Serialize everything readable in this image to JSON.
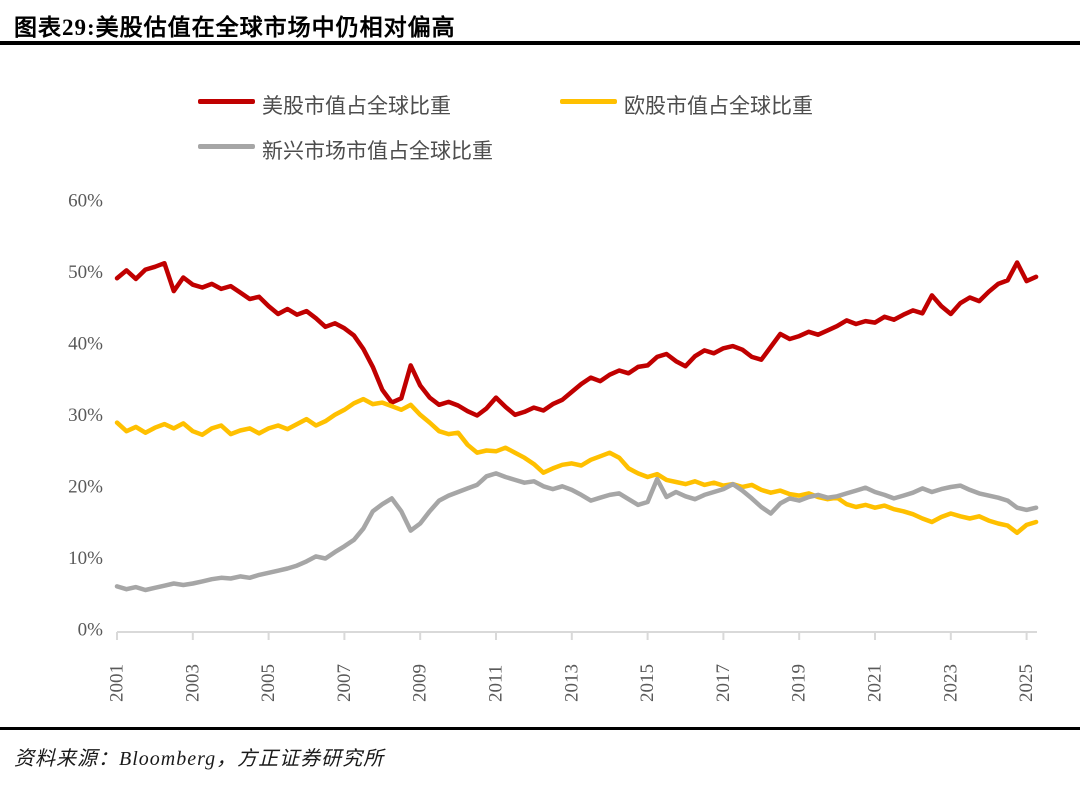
{
  "figure": {
    "title": "图表29:美股估值在全球市场中仍相对偏高",
    "source": "资料来源：Bloomberg，方正证券研究所"
  },
  "colors": {
    "us_line": "#C00000",
    "eu_line": "#FFC000",
    "em_line": "#A6A6A6",
    "axis_line": "#D9D9D9",
    "axis_label": "#595959",
    "rule": "#000000"
  },
  "chart_data": {
    "type": "line",
    "title": "",
    "xlabel": "",
    "ylabel": "",
    "grid": false,
    "legend_position": "top",
    "x_axis": {
      "tick_values": [
        2001,
        2003,
        2005,
        2007,
        2009,
        2011,
        2013,
        2015,
        2017,
        2019,
        2021,
        2023,
        2025
      ],
      "tick_labels": [
        "2001",
        "2003",
        "2005",
        "2007",
        "2009",
        "2011",
        "2013",
        "2015",
        "2017",
        "2019",
        "2021",
        "2023",
        "2025"
      ],
      "range": [
        2001,
        2025.3
      ],
      "label_rotation_deg": -90
    },
    "y_axis": {
      "tick_values": [
        0,
        10,
        20,
        30,
        40,
        50,
        60
      ],
      "tick_labels": [
        "0%",
        "10%",
        "20%",
        "30%",
        "40%",
        "50%",
        "60%"
      ],
      "range": [
        0,
        60
      ],
      "unit": "%"
    },
    "x": [
      2001.0,
      2001.25,
      2001.5,
      2001.75,
      2002.0,
      2002.25,
      2002.5,
      2002.75,
      2003.0,
      2003.25,
      2003.5,
      2003.75,
      2004.0,
      2004.25,
      2004.5,
      2004.75,
      2005.0,
      2005.25,
      2005.5,
      2005.75,
      2006.0,
      2006.25,
      2006.5,
      2006.75,
      2007.0,
      2007.25,
      2007.5,
      2007.75,
      2008.0,
      2008.25,
      2008.5,
      2008.75,
      2009.0,
      2009.25,
      2009.5,
      2009.75,
      2010.0,
      2010.25,
      2010.5,
      2010.75,
      2011.0,
      2011.25,
      2011.5,
      2011.75,
      2012.0,
      2012.25,
      2012.5,
      2012.75,
      2013.0,
      2013.25,
      2013.5,
      2013.75,
      2014.0,
      2014.25,
      2014.5,
      2014.75,
      2015.0,
      2015.25,
      2015.5,
      2015.75,
      2016.0,
      2016.25,
      2016.5,
      2016.75,
      2017.0,
      2017.25,
      2017.5,
      2017.75,
      2018.0,
      2018.25,
      2018.5,
      2018.75,
      2019.0,
      2019.25,
      2019.5,
      2019.75,
      2020.0,
      2020.25,
      2020.5,
      2020.75,
      2021.0,
      2021.25,
      2021.5,
      2021.75,
      2022.0,
      2022.25,
      2022.5,
      2022.75,
      2023.0,
      2023.25,
      2023.5,
      2023.75,
      2024.0,
      2024.25,
      2024.5,
      2024.75,
      2025.0,
      2025.25
    ],
    "series": [
      {
        "name": "美股市值占全球比重",
        "color": "#C00000",
        "stroke_width": 4.5,
        "values": [
          49.2,
          50.3,
          49.1,
          50.4,
          50.8,
          51.3,
          47.4,
          49.3,
          48.3,
          47.9,
          48.4,
          47.7,
          48.1,
          47.2,
          46.3,
          46.6,
          45.3,
          44.2,
          44.9,
          44.1,
          44.6,
          43.6,
          42.4,
          42.9,
          42.2,
          41.2,
          39.3,
          36.8,
          33.6,
          31.8,
          32.4,
          37.0,
          34.2,
          32.5,
          31.5,
          31.9,
          31.4,
          30.6,
          30.0,
          31.0,
          32.5,
          31.2,
          30.1,
          30.5,
          31.1,
          30.7,
          31.6,
          32.2,
          33.3,
          34.4,
          35.3,
          34.8,
          35.7,
          36.3,
          35.9,
          36.8,
          37.0,
          38.2,
          38.6,
          37.6,
          36.9,
          38.3,
          39.1,
          38.7,
          39.4,
          39.7,
          39.2,
          38.2,
          37.8,
          39.6,
          41.4,
          40.7,
          41.1,
          41.7,
          41.3,
          41.9,
          42.5,
          43.3,
          42.8,
          43.2,
          43.0,
          43.8,
          43.4,
          44.1,
          44.7,
          44.3,
          46.8,
          45.3,
          44.2,
          45.7,
          46.5,
          46.0,
          47.3,
          48.4,
          48.9,
          51.4,
          48.8,
          49.4
        ]
      },
      {
        "name": "欧股市值占全球比重",
        "color": "#FFC000",
        "stroke_width": 4.5,
        "values": [
          29.0,
          27.8,
          28.4,
          27.6,
          28.3,
          28.8,
          28.2,
          28.9,
          27.8,
          27.3,
          28.2,
          28.6,
          27.4,
          27.9,
          28.2,
          27.5,
          28.2,
          28.6,
          28.1,
          28.8,
          29.5,
          28.6,
          29.2,
          30.1,
          30.8,
          31.7,
          32.3,
          31.6,
          31.8,
          31.3,
          30.8,
          31.5,
          30.1,
          29.0,
          27.8,
          27.4,
          27.6,
          25.9,
          24.8,
          25.1,
          25.0,
          25.5,
          24.8,
          24.1,
          23.2,
          22.0,
          22.6,
          23.1,
          23.3,
          23.0,
          23.8,
          24.3,
          24.8,
          24.1,
          22.6,
          21.9,
          21.4,
          21.8,
          21.0,
          20.7,
          20.4,
          20.8,
          20.3,
          20.6,
          20.2,
          20.4,
          20.0,
          20.3,
          19.6,
          19.2,
          19.5,
          19.0,
          18.8,
          19.1,
          18.6,
          18.3,
          18.5,
          17.6,
          17.2,
          17.5,
          17.1,
          17.4,
          16.9,
          16.6,
          16.2,
          15.6,
          15.1,
          15.8,
          16.3,
          15.9,
          15.6,
          15.9,
          15.3,
          14.9,
          14.6,
          13.6,
          14.7,
          15.1
        ]
      },
      {
        "name": "新兴市场市值占全球比重",
        "color": "#A6A6A6",
        "stroke_width": 4.5,
        "values": [
          6.1,
          5.7,
          6.0,
          5.6,
          5.9,
          6.2,
          6.5,
          6.3,
          6.5,
          6.8,
          7.1,
          7.3,
          7.2,
          7.5,
          7.3,
          7.7,
          8.0,
          8.3,
          8.6,
          9.0,
          9.6,
          10.3,
          10.0,
          10.9,
          11.7,
          12.6,
          14.2,
          16.6,
          17.6,
          18.4,
          16.6,
          13.9,
          14.9,
          16.6,
          18.1,
          18.8,
          19.3,
          19.8,
          20.3,
          21.5,
          21.9,
          21.4,
          21.0,
          20.6,
          20.8,
          20.1,
          19.7,
          20.1,
          19.6,
          18.9,
          18.1,
          18.5,
          18.9,
          19.1,
          18.3,
          17.5,
          17.9,
          21.1,
          18.6,
          19.3,
          18.7,
          18.3,
          18.9,
          19.3,
          19.7,
          20.4,
          19.5,
          18.4,
          17.2,
          16.3,
          17.7,
          18.4,
          18.1,
          18.6,
          18.9,
          18.5,
          18.7,
          19.1,
          19.5,
          19.9,
          19.3,
          18.9,
          18.4,
          18.8,
          19.2,
          19.8,
          19.3,
          19.7,
          20.0,
          20.2,
          19.6,
          19.1,
          18.8,
          18.5,
          18.1,
          17.1,
          16.8,
          17.1
        ]
      }
    ]
  }
}
